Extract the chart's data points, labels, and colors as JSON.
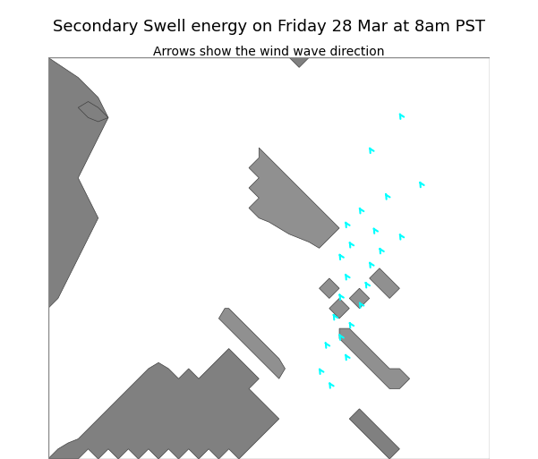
{
  "title": "Secondary Swell energy on Friday 28 Mar at 8am PST",
  "subtitle": "Arrows show the wind wave direction",
  "title_fontsize": 13,
  "subtitle_fontsize": 10,
  "background_color": "#ffffff",
  "map_bg_color": "#000000",
  "land_color": "#888888",
  "land_edge_color": "#000000",
  "arrow_color": "#00ffff",
  "xlim": [
    108,
    130
  ],
  "ylim": [
    3,
    23
  ],
  "figsize": [
    6.01,
    5.13
  ],
  "dpi": 100,
  "arrows": [
    [
      125.5,
      20.2,
      -0.3,
      0.5
    ],
    [
      124.0,
      18.5,
      -0.3,
      0.5
    ],
    [
      126.5,
      16.8,
      -0.3,
      0.5
    ],
    [
      124.8,
      16.2,
      -0.3,
      0.5
    ],
    [
      123.5,
      15.5,
      -0.3,
      0.5
    ],
    [
      122.8,
      14.8,
      -0.3,
      0.5
    ],
    [
      124.2,
      14.5,
      -0.3,
      0.5
    ],
    [
      125.5,
      14.2,
      -0.3,
      0.5
    ],
    [
      123.0,
      13.8,
      -0.3,
      0.5
    ],
    [
      124.5,
      13.5,
      -0.3,
      0.5
    ],
    [
      122.5,
      13.2,
      -0.3,
      0.5
    ],
    [
      124.0,
      12.8,
      -0.3,
      0.5
    ],
    [
      122.8,
      12.2,
      -0.3,
      0.5
    ],
    [
      123.8,
      11.8,
      -0.3,
      0.5
    ],
    [
      122.5,
      11.2,
      -0.3,
      0.5
    ],
    [
      123.5,
      10.8,
      -0.3,
      0.5
    ],
    [
      122.2,
      10.2,
      -0.3,
      0.5
    ],
    [
      123.0,
      9.8,
      -0.3,
      0.5
    ],
    [
      122.5,
      9.2,
      -0.3,
      0.5
    ],
    [
      121.8,
      8.8,
      -0.3,
      0.5
    ],
    [
      122.8,
      8.2,
      -0.3,
      0.5
    ],
    [
      121.5,
      7.5,
      -0.3,
      0.5
    ],
    [
      122.0,
      6.8,
      -0.3,
      0.5
    ]
  ]
}
